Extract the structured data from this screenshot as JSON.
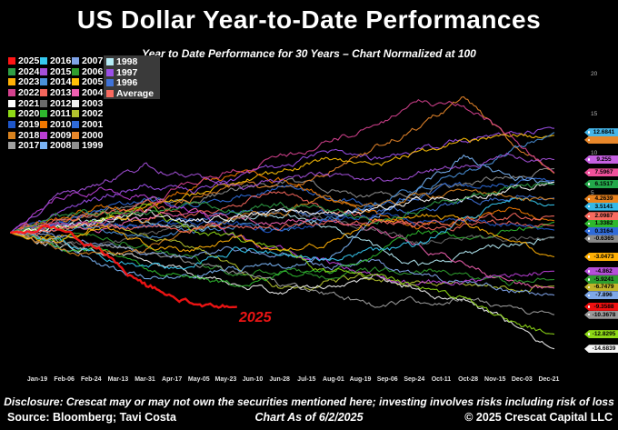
{
  "header": {
    "title": "US Dollar Year-to-Date Performances",
    "subtitle": "Year to Date Performance for 30 Years – Chart Normalized at 100"
  },
  "legend": {
    "columns": [
      [
        {
          "label": "2025",
          "color": "#ff1515"
        },
        {
          "label": "2024",
          "color": "#2f9e44"
        },
        {
          "label": "2023",
          "color": "#ffb005"
        },
        {
          "label": "2022",
          "color": "#d4418e"
        },
        {
          "label": "2021",
          "color": "#ffffff"
        },
        {
          "label": "2020",
          "color": "#8ed916"
        },
        {
          "label": "2019",
          "color": "#1e56c8"
        },
        {
          "label": "2018",
          "color": "#d8821e"
        },
        {
          "label": "2017",
          "color": "#a0a0a0"
        }
      ],
      [
        {
          "label": "2016",
          "color": "#35c8f0"
        },
        {
          "label": "2015",
          "color": "#a44fd9"
        },
        {
          "label": "2014",
          "color": "#4a90d9"
        },
        {
          "label": "2013",
          "color": "#f4665c"
        },
        {
          "label": "2012",
          "color": "#6a6a6a"
        },
        {
          "label": "2011",
          "color": "#2eb82e"
        },
        {
          "label": "2010",
          "color": "#f07800"
        },
        {
          "label": "2009",
          "color": "#b93ed4"
        },
        {
          "label": "2008",
          "color": "#7ab4f5"
        }
      ],
      [
        {
          "label": "2007",
          "color": "#7fa3e8"
        },
        {
          "label": "2006",
          "color": "#2f9e2f"
        },
        {
          "label": "2005",
          "color": "#ffc107"
        },
        {
          "label": "2004",
          "color": "#ef5fb0"
        },
        {
          "label": "2003",
          "color": "#f2f2f2"
        },
        {
          "label": "2002",
          "color": "#b2c22e"
        },
        {
          "label": "2001",
          "color": "#2f6bd9"
        },
        {
          "label": "2000",
          "color": "#e8872a"
        },
        {
          "label": "1999",
          "color": "#8f8f8f"
        }
      ],
      [
        {
          "label": "1998",
          "color": "#b5ecf5"
        },
        {
          "label": "1997",
          "color": "#9b4fe8"
        },
        {
          "label": "1996",
          "color": "#3f73d9"
        },
        {
          "label": "Average",
          "color": "#f96a5f"
        }
      ]
    ]
  },
  "chart_data": {
    "type": "line",
    "title": "US Dollar Year-to-Date Performances",
    "subtitle": "Year to Date Performance for 30 Years – Chart Normalized at 100",
    "x_tick_labels": [
      "Jan-19",
      "Feb-06",
      "Feb-24",
      "Mar-13",
      "Mar-31",
      "Apr-17",
      "May-05",
      "May-23",
      "Jun-10",
      "Jun-28",
      "Jul-15",
      "Aug-01",
      "Aug-19",
      "Sep-06",
      "Sep-24",
      "Oct-11",
      "Oct-28",
      "Nov-15",
      "Dec-03",
      "Dec-21"
    ],
    "y_axis": {
      "side": "right",
      "ticks": [
        20,
        15,
        10,
        5,
        0,
        -5,
        -10,
        -15
      ],
      "range": [
        -16,
        21
      ]
    },
    "normalized_at": 100,
    "grid": false,
    "legend_position": "top-left",
    "annotation": {
      "text": "2025",
      "color": "#e81414"
    },
    "series": [
      {
        "name": "1996",
        "color": "#3f73d9",
        "values": [
          0,
          0.6,
          1.2,
          0.8,
          1.8,
          2.4,
          2.8,
          2.2,
          3.2,
          2.8,
          3.8,
          4.6,
          4.4
        ]
      },
      {
        "name": "1997",
        "color": "#9b4fe8",
        "values": [
          0,
          2.2,
          4.4,
          6.2,
          5.2,
          6.6,
          8.4,
          10.2,
          9.2,
          10.6,
          11.6,
          12.6,
          13.2
        ]
      },
      {
        "name": "1998",
        "color": "#b5ecf5",
        "values": [
          0,
          0.6,
          1.6,
          1.2,
          0.6,
          1.4,
          2.2,
          1.2,
          -1.6,
          -4.2,
          -2.6,
          -1.4,
          -0.6
        ]
      },
      {
        "name": "1999",
        "color": "#8f8f8f",
        "values": [
          0,
          1.4,
          2.8,
          4.4,
          3.8,
          5.4,
          6.4,
          5.6,
          4.4,
          5.0,
          6.2,
          7.2,
          8.1
        ]
      },
      {
        "name": "2000",
        "color": "#e8872a",
        "values": [
          0,
          0.6,
          2.2,
          1.6,
          4.2,
          6.4,
          5.2,
          7.8,
          10.5,
          13.5,
          16.8,
          12.0,
          7.5
        ]
      },
      {
        "name": "2001",
        "color": "#2f6bd9",
        "values": [
          0,
          1.2,
          2.6,
          4.2,
          3.2,
          4.6,
          5.8,
          4.6,
          3.6,
          4.8,
          5.8,
          6.2,
          6.6
        ]
      },
      {
        "name": "2002",
        "color": "#b2c22e",
        "values": [
          0,
          0.4,
          0.8,
          -0.2,
          -1.8,
          -4.6,
          -7.0,
          -6.2,
          -5.6,
          -6.6,
          -6.2,
          -7.2,
          -6.7479
        ]
      },
      {
        "name": "2003",
        "color": "#f2f2f2",
        "values": [
          0,
          -1.4,
          -2.6,
          -3.2,
          -5.2,
          -6.2,
          -7.4,
          -6.4,
          -5.6,
          -7.2,
          -8.8,
          -11.6,
          -14.6839
        ]
      },
      {
        "name": "2004",
        "color": "#ef5fb0",
        "values": [
          0,
          1.2,
          0.6,
          1.8,
          2.8,
          2.2,
          1.2,
          1.6,
          0.6,
          -1.6,
          -3.8,
          -6.2,
          -7.0
        ]
      },
      {
        "name": "2005",
        "color": "#ffc107",
        "values": [
          0,
          -0.6,
          1.4,
          3.2,
          4.6,
          6.6,
          7.6,
          9.2,
          8.2,
          10.2,
          11.6,
          12.0,
          12.3
        ]
      },
      {
        "name": "2006",
        "color": "#2f9e2f",
        "values": [
          0,
          -0.8,
          -0.4,
          -1.8,
          -3.6,
          -5.2,
          -4.6,
          -5.6,
          -5.0,
          -4.6,
          -5.4,
          -6.4,
          -5.9241
        ]
      },
      {
        "name": "2007",
        "color": "#7fa3e8",
        "values": [
          0,
          -0.6,
          -1.4,
          -2.6,
          -3.2,
          -2.2,
          -2.8,
          -4.2,
          -3.6,
          -5.4,
          -6.0,
          -7.2,
          -7.896
        ]
      },
      {
        "name": "2008",
        "color": "#7ab4f5",
        "values": [
          0,
          -1.4,
          -4.2,
          -5.8,
          -5.2,
          -4.6,
          -4.2,
          -3.2,
          1.4,
          5.4,
          9.6,
          7.2,
          6.1
        ]
      },
      {
        "name": "2009",
        "color": "#b93ed4",
        "values": [
          0,
          4.2,
          5.6,
          4.6,
          3.2,
          -0.8,
          -2.4,
          -3.6,
          -5.2,
          -6.6,
          -6.2,
          -5.4,
          -4.862
        ]
      },
      {
        "name": "2010",
        "color": "#f07800",
        "values": [
          0,
          1.6,
          3.2,
          2.6,
          5.6,
          7.6,
          6.6,
          4.6,
          2.6,
          0.6,
          1.6,
          2.8,
          1.5
        ]
      },
      {
        "name": "2011",
        "color": "#2eb82e",
        "values": [
          0,
          -1.6,
          -2.6,
          -4.6,
          -5.8,
          -6.6,
          -5.2,
          -4.6,
          -3.2,
          0.6,
          -1.2,
          0.4,
          1.3382
        ]
      },
      {
        "name": "2012",
        "color": "#6a6a6a",
        "values": [
          0,
          -1.0,
          -1.6,
          -0.6,
          0.6,
          1.8,
          2.6,
          1.6,
          0.6,
          -1.2,
          -0.6,
          -1.2,
          -0.6365
        ]
      },
      {
        "name": "2013",
        "color": "#f4665c",
        "values": [
          0,
          1.4,
          2.6,
          3.6,
          2.2,
          3.6,
          5.4,
          2.6,
          2.0,
          0.6,
          0.8,
          1.4,
          0.9
        ]
      },
      {
        "name": "2014",
        "color": "#4a90d9",
        "values": [
          0,
          0.4,
          0.0,
          -0.6,
          0.2,
          0.6,
          0.4,
          1.6,
          3.6,
          5.6,
          7.6,
          10.2,
          12.6841
        ]
      },
      {
        "name": "2015",
        "color": "#a44fd9",
        "values": [
          0,
          4.6,
          6.2,
          8.6,
          7.0,
          5.6,
          6.6,
          7.2,
          6.2,
          7.6,
          8.2,
          9.6,
          9.255
        ]
      },
      {
        "name": "2016",
        "color": "#35c8f0",
        "values": [
          0,
          -1.0,
          -2.6,
          -4.4,
          -4.0,
          -2.2,
          -2.6,
          -3.2,
          -2.6,
          -1.6,
          1.6,
          4.2,
          3.5141
        ]
      },
      {
        "name": "2017",
        "color": "#a0a0a0",
        "values": [
          0,
          -1.2,
          -1.6,
          -2.2,
          -3.6,
          -5.2,
          -6.6,
          -7.6,
          -9.2,
          -8.6,
          -8.2,
          -9.6,
          -10.3678
        ]
      },
      {
        "name": "2018",
        "color": "#d8821e",
        "values": [
          0,
          -2.2,
          -2.6,
          -2.2,
          0.6,
          2.2,
          2.6,
          4.2,
          3.6,
          4.6,
          5.2,
          4.8,
          4.2639
        ]
      },
      {
        "name": "2019",
        "color": "#1e56c8",
        "values": [
          0,
          0.6,
          1.2,
          1.0,
          1.6,
          1.0,
          0.2,
          1.6,
          2.2,
          1.2,
          1.6,
          1.0,
          0.3164
        ]
      },
      {
        "name": "2020",
        "color": "#8ed916",
        "values": [
          0,
          0.8,
          1.6,
          3.6,
          0.4,
          -0.6,
          -2.2,
          -5.2,
          -5.8,
          -6.6,
          -8.2,
          -11.2,
          -12.8295
        ]
      },
      {
        "name": "2021",
        "color": "#ffffff",
        "values": [
          0,
          0.8,
          1.4,
          2.6,
          1.4,
          2.0,
          3.0,
          2.4,
          2.8,
          4.2,
          4.4,
          5.2,
          6.4
        ]
      },
      {
        "name": "2022",
        "color": "#d4418e",
        "values": [
          0,
          0.8,
          1.6,
          2.8,
          6.5,
          8.0,
          9.5,
          11.5,
          13.5,
          16.5,
          16.0,
          12.5,
          7.5967
        ]
      },
      {
        "name": "2023",
        "color": "#ffb005",
        "values": [
          0,
          -1.2,
          0.6,
          -1.6,
          -2.2,
          -0.8,
          -2.4,
          -1.4,
          1.2,
          2.4,
          1.8,
          -1.2,
          -3.0473
        ]
      },
      {
        "name": "2024",
        "color": "#2f9e44",
        "values": [
          0,
          1.8,
          2.6,
          2.2,
          3.4,
          2.8,
          3.6,
          3.0,
          1.6,
          2.6,
          4.4,
          5.6,
          6.1517
        ]
      },
      {
        "name": "Average",
        "color": "#f96a5f",
        "values": [
          0,
          0.4,
          0.9,
          0.6,
          0.7,
          1.0,
          0.8,
          1.0,
          1.1,
          1.3,
          1.6,
          1.9,
          2.0987
        ]
      },
      {
        "name": "2025",
        "color": "#ff1515",
        "values": [
          0,
          0.5,
          -2.0,
          -6.5,
          -8.8,
          -9.3588
        ]
      }
    ],
    "end_value_labels": [
      {
        "label": "12.6841",
        "v": 12.6841,
        "color": "#45b5e8"
      },
      {
        "label": "",
        "v": 12.2,
        "color": "#e8872a"
      },
      {
        "label": "9.255",
        "v": 9.255,
        "color": "#c55fe0"
      },
      {
        "label": "7.5967",
        "v": 7.5967,
        "color": "#f0509b"
      },
      {
        "label": "6.1517",
        "v": 6.1517,
        "color": "#23a84a"
      },
      {
        "label": "4.2639",
        "v": 4.2639,
        "color": "#e8821e"
      },
      {
        "label": "3.5141",
        "v": 3.5141,
        "color": "#35b8e8"
      },
      {
        "label": "2.0987",
        "v": 2.0987,
        "color": "#f96a5f"
      },
      {
        "label": "1.3382",
        "v": 1.3382,
        "color": "#2eb82e"
      },
      {
        "label": "0.3164",
        "v": 0.3164,
        "color": "#2f6bd9"
      },
      {
        "label": "-0.6365",
        "v": -0.6365,
        "color": "#8a8a8a"
      },
      {
        "label": "-3.0473",
        "v": -3.0473,
        "color": "#ffb005"
      },
      {
        "label": "-4.862",
        "v": -4.862,
        "color": "#b44fd8"
      },
      {
        "label": "-5.9241",
        "v": -5.9241,
        "color": "#2f9e2f"
      },
      {
        "label": "-6.7479",
        "v": -6.7479,
        "color": "#c2b42a"
      },
      {
        "label": "-7.896",
        "v": -7.896,
        "color": "#7fa8e8"
      },
      {
        "label": "-9.3588",
        "v": -9.3588,
        "color": "#f01010"
      },
      {
        "label": "-10.3678",
        "v": -10.3678,
        "color": "#9a9a9a"
      },
      {
        "label": "-12.8295",
        "v": -12.8295,
        "color": "#8ed916"
      },
      {
        "label": "-14.6839",
        "v": -14.6839,
        "color": "#f5f5f5"
      }
    ]
  },
  "footer": {
    "disclosure": "Disclosure: Crescat may or may not own the securities mentioned here; investing involves risks including risk of loss",
    "source": "Source: Bloomberg; Tavi Costa",
    "as_of": "Chart As of 6/2/2025",
    "copyright": "© 2025 Crescat Capital LLC"
  }
}
